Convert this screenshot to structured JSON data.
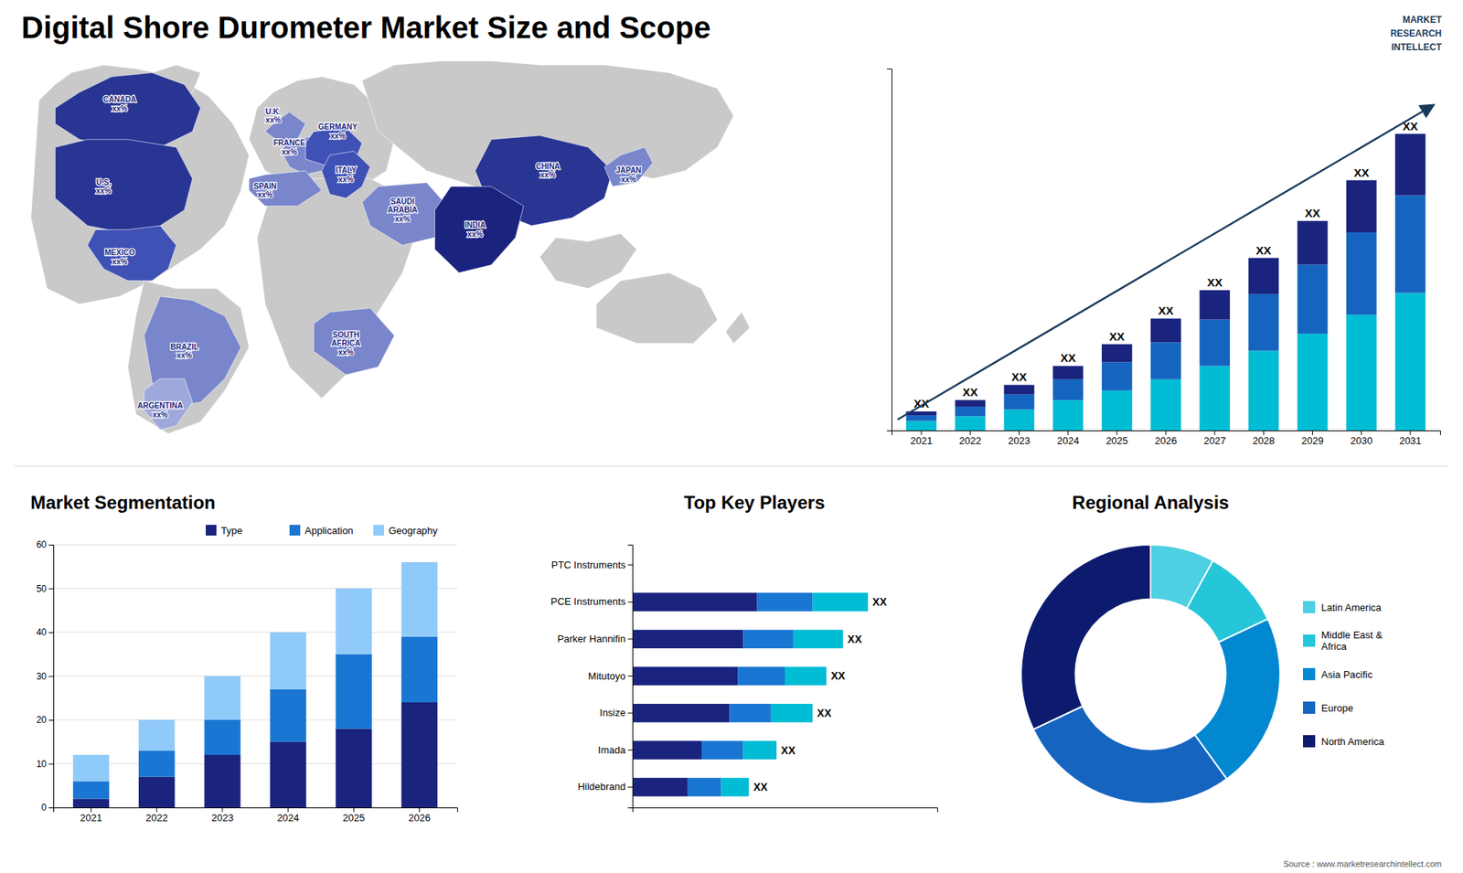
{
  "title": "Digital Shore Durometer Market Size and Scope",
  "annotations": [
    {
      "text": "MARKET\nRESEARCH\nINTELLECT",
      "color": "#1a3a5c"
    },
    {
      "text": "Source : www.marketresearchintellect.com",
      "color": "#555555"
    }
  ],
  "chart_data": [
    {
      "type": "map",
      "annotations": [
        "CANADA\nxx%",
        "U.S.\nxx%",
        "MEXICO\nxx%",
        "BRAZIL\nxx%",
        "ARGENTINA\nxx%",
        "U.K.\nxx%",
        "FRANCE\nxx%",
        "SPAIN\nxx%",
        "GERMANY\nxx%",
        "ITALY\nxx%",
        "SAUDI\nARABIA\nxx%",
        "SOUTH\nAFRICA\nxx%",
        "CHINA\nxx%",
        "JAPAN\nxx%",
        "INDIA\nxx%"
      ],
      "color": "#1a237e"
    },
    {
      "type": "bar",
      "stacked": true,
      "categories": [
        "2021",
        "2022",
        "2023",
        "2024",
        "2025",
        "2026",
        "2027",
        "2028",
        "2029",
        "2030",
        "2031"
      ],
      "series": [
        {
          "color": "#00bcd4",
          "values": [
            1.0,
            1.5,
            2.2,
            3.2,
            4.2,
            5.4,
            6.8,
            8.4,
            10.2,
            12.2,
            14.5
          ]
        },
        {
          "color": "#1565c0",
          "values": [
            0.6,
            1.0,
            1.6,
            2.2,
            3.0,
            3.9,
            4.9,
            6.0,
            7.3,
            8.7,
            10.3
          ]
        },
        {
          "color": "#1a237e",
          "values": [
            0.4,
            0.7,
            1.0,
            1.4,
            1.9,
            2.5,
            3.1,
            3.8,
            4.6,
            5.5,
            6.5
          ]
        }
      ],
      "total_labels": [
        "XX",
        "XX",
        "XX",
        "XX",
        "XX",
        "XX",
        "XX",
        "XX",
        "XX",
        "XX",
        "XX"
      ],
      "ylim": [
        0,
        38.186
      ],
      "tick_labels": "x",
      "arrow": {
        "color": "#1a3a5c"
      }
    },
    {
      "type": "bar",
      "stacked": true,
      "title": "Market Segmentation",
      "categories": [
        "2021",
        "2022",
        "2023",
        "2024",
        "2025",
        "2026"
      ],
      "series": [
        {
          "name": "Type",
          "color": "#1a237e",
          "values": [
            2,
            7,
            12,
            15,
            18,
            24
          ]
        },
        {
          "name": "Application",
          "color": "#1976d2",
          "values": [
            4,
            6,
            8,
            12,
            17,
            15
          ]
        },
        {
          "name": "Geography",
          "color": "#90caf9",
          "values": [
            6,
            7,
            10,
            13,
            15,
            17
          ]
        }
      ],
      "ylim": [
        0,
        60
      ],
      "yticks": [
        0,
        10,
        20,
        30,
        40,
        50,
        60
      ],
      "grid": true,
      "legend": "upper right"
    },
    {
      "type": "bar",
      "orientation": "horizontal",
      "stacked": true,
      "title": "Top Key Players",
      "categories": [
        "PTC Instruments",
        "PCE Instruments",
        "Parker Hannifin",
        "Mitutoyo",
        "Insize",
        "Imada",
        "Hildebrand"
      ],
      "series": [
        {
          "color": "#1a237e",
          "values": [
            0,
            4.5,
            4.0,
            3.8,
            3.5,
            2.5,
            2.0
          ]
        },
        {
          "color": "#1976d2",
          "values": [
            0,
            2.0,
            1.8,
            1.7,
            1.5,
            1.5,
            1.2
          ]
        },
        {
          "color": "#00bcd4",
          "values": [
            0,
            2.0,
            1.8,
            1.5,
            1.5,
            1.2,
            1.0
          ]
        }
      ],
      "total_labels": [
        null,
        "XX",
        "XX",
        "XX",
        "XX",
        "XX",
        "XX"
      ],
      "xlim": [
        0,
        11
      ],
      "tick_labels": "y"
    },
    {
      "type": "pie",
      "title": "Regional Analysis",
      "categories": [
        "Latin America",
        "Middle East &\nAfrica",
        "Asia Pacific",
        "Europe",
        "North America"
      ],
      "values": [
        0.08,
        0.1,
        0.22,
        0.28,
        0.32
      ],
      "colors": [
        "#4dd0e1",
        "#26c6da",
        "#0288d1",
        "#1565c0",
        "#0d1b6e"
      ],
      "legend": "right"
    }
  ]
}
